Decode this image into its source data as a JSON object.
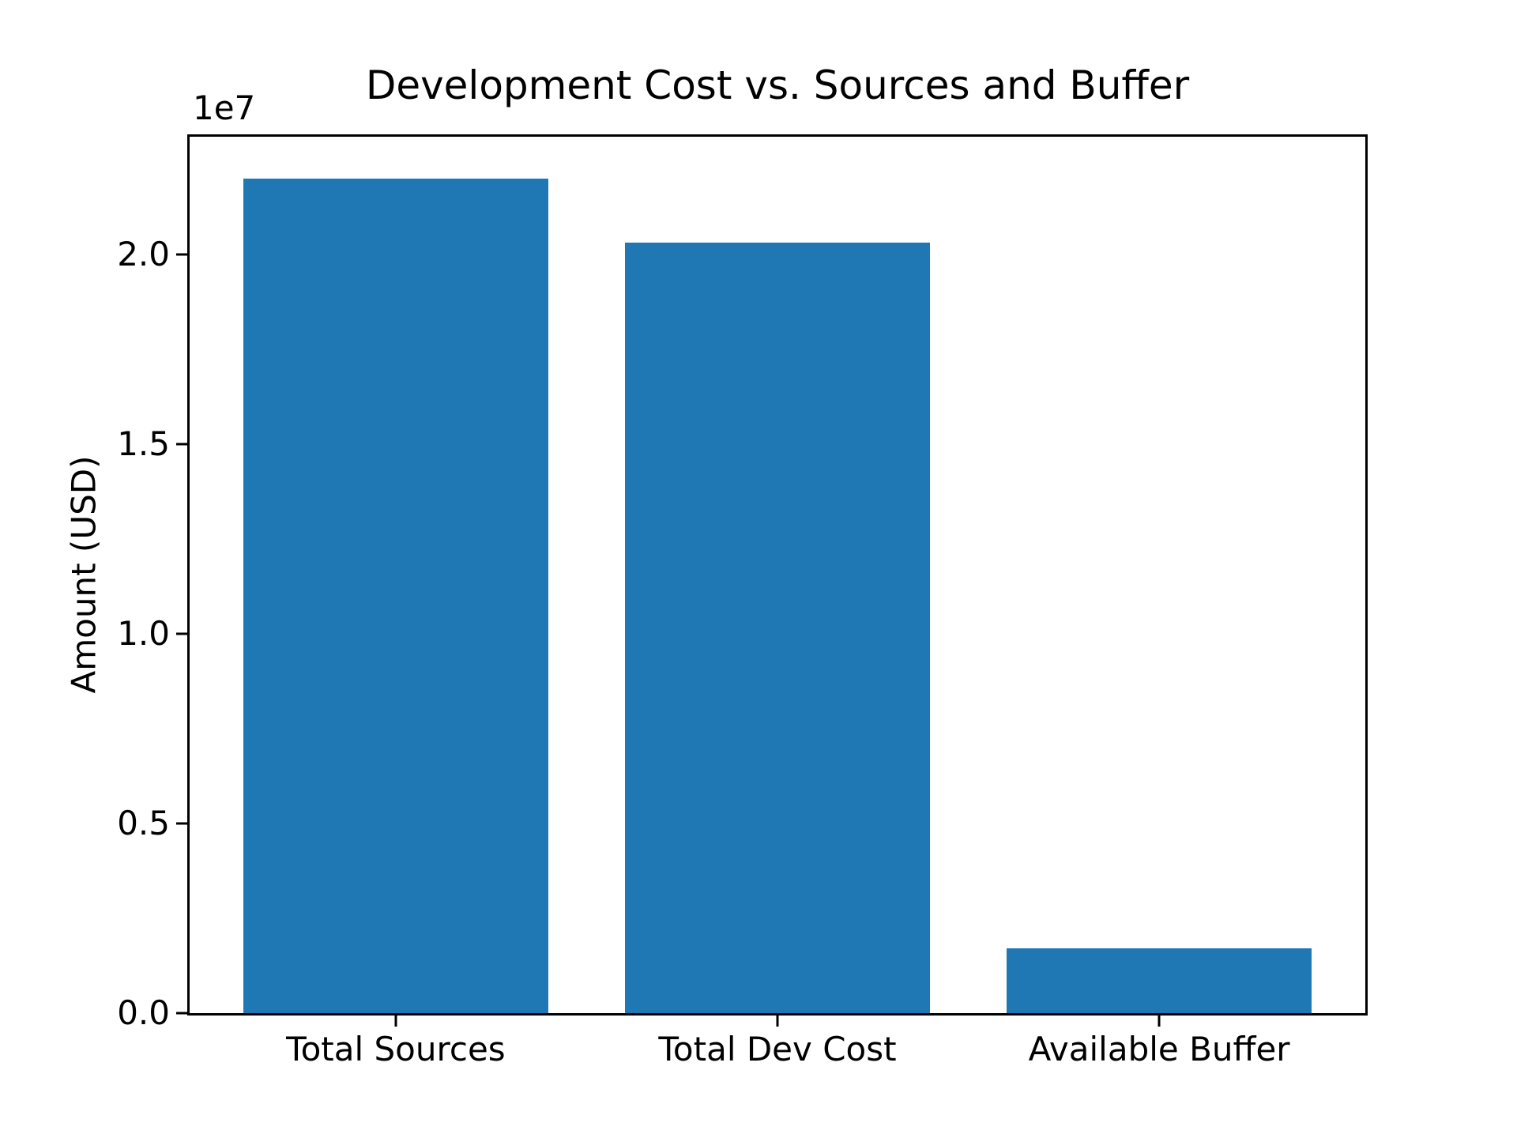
{
  "chart_data": {
    "type": "bar",
    "title": "Development Cost vs. Sources and Buffer",
    "categories": [
      "Total Sources",
      "Total Dev Cost",
      "Available Buffer"
    ],
    "values": [
      22000000,
      20300000,
      1700000
    ],
    "xlabel": "",
    "ylabel": "Amount (USD)",
    "ylim": [
      0,
      23100000
    ],
    "yticks": [
      0,
      5000000,
      10000000,
      15000000,
      20000000
    ],
    "ytick_labels": [
      "0.0",
      "0.5",
      "1.0",
      "1.5",
      "2.0"
    ],
    "offset_text": "1e7",
    "bar_color": "#1f77b4",
    "axis_color": "#000000",
    "background_color": "#ffffff",
    "grid": false,
    "legend": null,
    "bar_width_units": 0.8,
    "xlim": [
      -0.54,
      2.54
    ]
  }
}
